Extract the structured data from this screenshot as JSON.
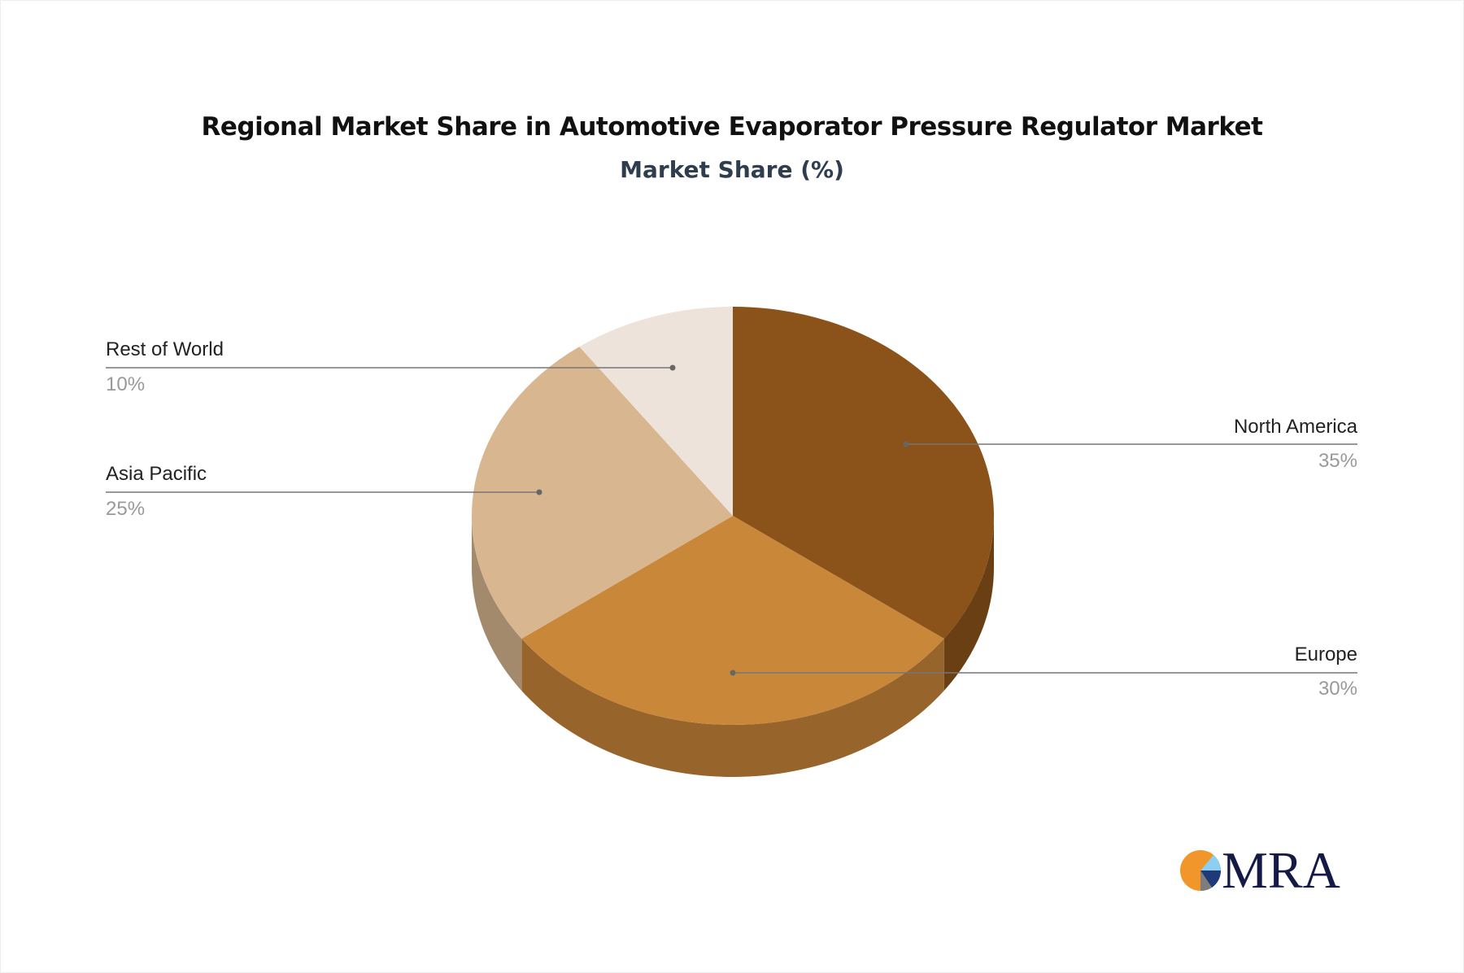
{
  "chart_data": {
    "type": "pie",
    "title": "Regional Market Share in Automotive Evaporator Pressure Regulator Market",
    "subtitle": "Market Share (%)",
    "style": "3d",
    "slices": [
      {
        "label": "North America",
        "value": 35,
        "value_label": "35%",
        "color": "#8B5319",
        "side_color": "#6A3F14"
      },
      {
        "label": "Europe",
        "value": 30,
        "value_label": "30%",
        "color": "#C9873A",
        "side_color": "#97652B"
      },
      {
        "label": "Asia Pacific",
        "value": 25,
        "value_label": "25%",
        "color": "#D8B690",
        "side_color": "#A38A6D"
      },
      {
        "label": "Rest of World",
        "value": 10,
        "value_label": "10%",
        "color": "#EEE3DB",
        "side_color": "#B3AAA4"
      }
    ]
  },
  "logo": {
    "text": "MRA"
  }
}
